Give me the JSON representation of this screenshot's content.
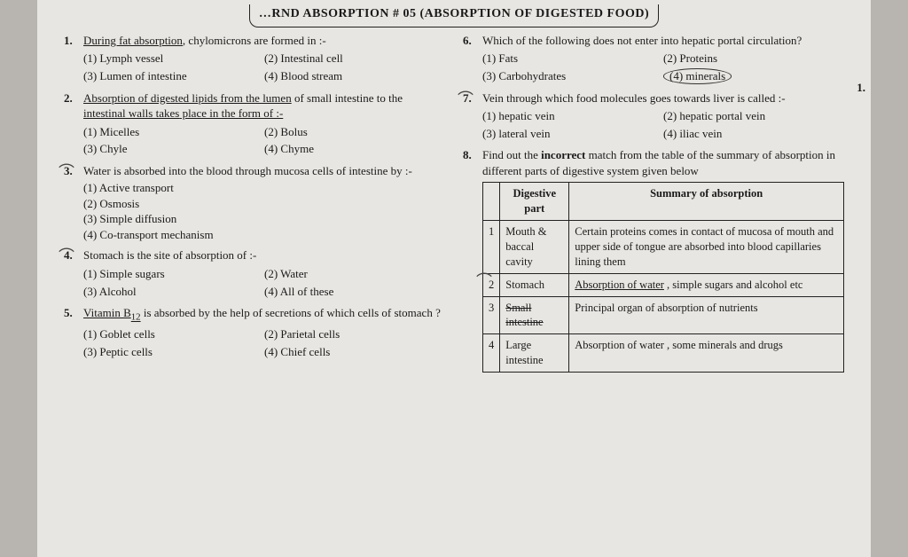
{
  "header": "…RND ABSORPTION # 05 (ABSORPTION OF DIGESTED FOOD)",
  "side_q1": "1.",
  "left": {
    "q1": {
      "num": "1.",
      "text_a": "During fat absorption",
      "text_b": ", chylomicrons are formed in :-",
      "o1": "(1) Lymph vessel",
      "o2": "(2) Intestinal cell",
      "o3": "(3) Lumen of intestine",
      "o4": "(4) Blood stream"
    },
    "q2": {
      "num": "2.",
      "text_a": "Absorption of digested lipids from the lumen",
      "text_b": " of small intestine to the ",
      "text_c": "intestinal walls takes",
      "text_d": " place in the form of :-",
      "o1": "(1) Micelles",
      "o2": "(2) Bolus",
      "o3": "(3) Chyle",
      "o4": "(4) Chyme"
    },
    "q3": {
      "num": "3.",
      "text": "Water is absorbed into the blood through mucosa cells of intestine by :-",
      "o1": "(1) Active transport",
      "o2": "(2) Osmosis",
      "o3": "(3) Simple diffusion",
      "o4": "(4) Co-transport mechanism"
    },
    "q4": {
      "num": "4.",
      "text": "Stomach is the site of absorption of :-",
      "o1": "(1) Simple sugars",
      "o2": "(2) Water",
      "o3": "(3) Alcohol",
      "o4": "(4) All of these"
    },
    "q5": {
      "num": "5.",
      "text_a": "Vitamin B",
      "text_sub": "12",
      "text_b": " is absorbed by the help of secretions of which cells of stomach ?",
      "o1": "(1) Goblet cells",
      "o2": "(2) Parietal cells",
      "o3": "(3) Peptic cells",
      "o4": "(4) Chief cells"
    }
  },
  "right": {
    "q6": {
      "num": "6.",
      "text": "Which of the following does not enter into hepatic portal circulation?",
      "o1": "(1) Fats",
      "o2": "(2) Proteins",
      "o3": "(3) Carbohydrates",
      "o4": "(4) minerals"
    },
    "q7": {
      "num": "7.",
      "text": "Vein through which food molecules goes towards liver is called :-",
      "o1": "(1) hepatic vein",
      "o2": "(2) hepatic portal vein",
      "o3": "(3) lateral vein",
      "o4": "(4) iliac vein"
    },
    "q8": {
      "num": "8.",
      "text_a": "Find out the ",
      "text_b": "incorrect",
      "text_c": " match from the table of the summary of absorption in different parts of digestive system given below"
    },
    "table": {
      "h1": "Digestive part",
      "h2": "Summary of absorption",
      "r1n": "1",
      "r1p": "Mouth & baccal cavity",
      "r1s": "Certain proteins comes in contact of mucosa of mouth and upper side of tongue are absorbed into blood capillaries lining them",
      "r2n": "2",
      "r2p": "Stomach",
      "r2s_a": "Absorption of water",
      "r2s_b": " , simple sugars and alcohol etc",
      "r3n": "3",
      "r3p": "Small intestine",
      "r3s": "Principal organ of absorption of nutrients",
      "r4n": "4",
      "r4p": "Large intestine",
      "r4s": "Absorption of water , some minerals and drugs"
    }
  }
}
